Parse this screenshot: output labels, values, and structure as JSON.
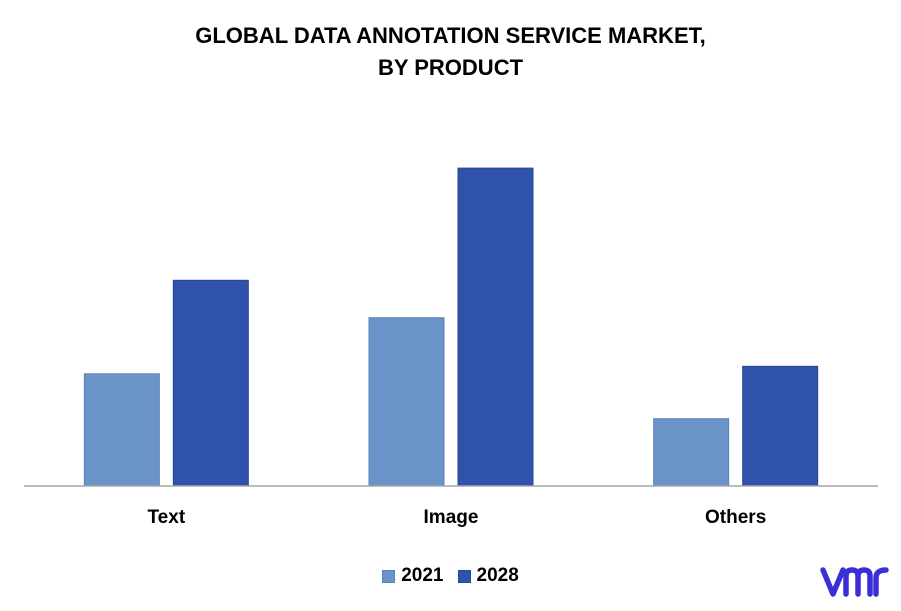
{
  "chart_data": {
    "type": "bar",
    "title_lines": [
      "GLOBAL DATA ANNOTATION SERVICE MARKET,",
      "BY PRODUCT"
    ],
    "categories": [
      "Text",
      "Image",
      "Others"
    ],
    "series": [
      {
        "name": "2021",
        "values": [
          3.0,
          4.5,
          1.8
        ],
        "color": "#6a93c8"
      },
      {
        "name": "2028",
        "values": [
          5.5,
          8.5,
          3.2
        ],
        "color": "#2f53ab"
      }
    ],
    "ylim": [
      0,
      10
    ],
    "grid": false,
    "legend_position": "bottom"
  },
  "logo": {
    "icon": "vmr-logo-icon",
    "color": "#3a2fd6"
  }
}
